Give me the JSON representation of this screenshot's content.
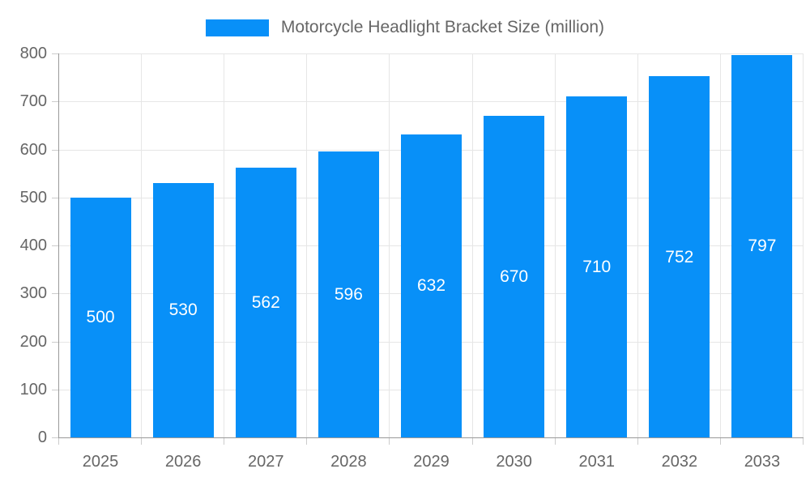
{
  "legend": {
    "label": "Motorcycle Headlight Bracket Size (million)"
  },
  "chart_data": {
    "type": "bar",
    "title": "Motorcycle Headlight Bracket Size (million)",
    "categories": [
      "2025",
      "2026",
      "2027",
      "2028",
      "2029",
      "2030",
      "2031",
      "2032",
      "2033"
    ],
    "values": [
      500,
      530,
      562,
      596,
      632,
      670,
      710,
      752,
      797
    ],
    "xlabel": "",
    "ylabel": "",
    "ylim": [
      0,
      800
    ],
    "yticks": [
      0,
      100,
      200,
      300,
      400,
      500,
      600,
      700,
      800
    ],
    "grid": true,
    "legend_position": "top",
    "bar_color": "#0890F8",
    "bar_label_color": "#ffffff"
  },
  "colors": {
    "bar": "#0890F8",
    "axis": "#999999",
    "gridline": "#e6e6e6",
    "tick": "#cccccc",
    "tick_label": "#666666",
    "legend_text": "#666666",
    "background": "#ffffff"
  }
}
